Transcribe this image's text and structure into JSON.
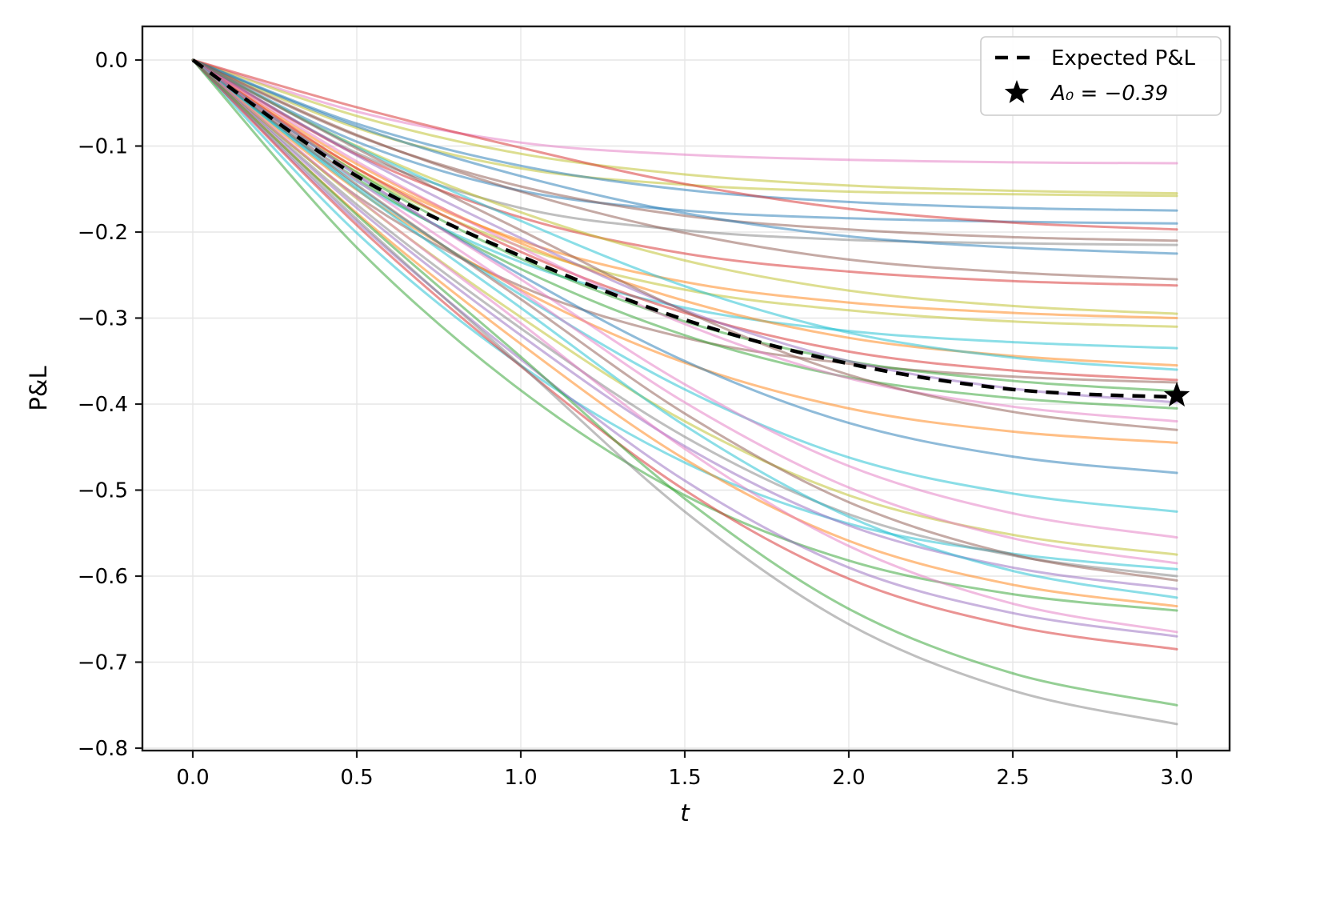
{
  "chart_data": {
    "type": "line",
    "title": "",
    "xlabel": "t",
    "ylabel": "P&L",
    "xlim": [
      -0.15,
      3.15
    ],
    "ylim": [
      -0.8,
      0.0
    ],
    "grid": true,
    "x": [
      0,
      0.5,
      1.0,
      1.5,
      2.0,
      2.5,
      3.0
    ],
    "xticks": [
      0,
      0.5,
      1.0,
      1.5,
      2.0,
      2.5,
      3.0
    ],
    "xtick_labels": [
      "0.0",
      "0.5",
      "1.0",
      "1.5",
      "2.0",
      "2.5",
      "3.0"
    ],
    "yticks": [
      0,
      -0.1,
      -0.2,
      -0.3,
      -0.4,
      -0.5,
      -0.6,
      -0.7,
      -0.8
    ],
    "ytick_labels": [
      "0.0",
      "−0.1",
      "−0.2",
      "−0.3",
      "−0.4",
      "−0.5",
      "−0.6",
      "−0.7",
      "−0.8"
    ],
    "legend": {
      "position": "upper right",
      "items": [
        {
          "marker": "dashed-line",
          "label": "Expected P&L"
        },
        {
          "marker": "star",
          "label": "A₀ = −0.39"
        }
      ]
    },
    "expected": {
      "label": "Expected P&L",
      "color": "#000000",
      "dashed": true,
      "y": [
        0,
        -0.135,
        -0.228,
        -0.302,
        -0.353,
        -0.383,
        -0.392
      ]
    },
    "terminal_marker": {
      "x": 3.0,
      "y": -0.39,
      "symbol": "star",
      "color": "#000000",
      "value_label": "A₀ = −0.39"
    },
    "series": [
      {
        "color": "#e377c2",
        "y": [
          0,
          -0.06,
          -0.096,
          -0.11,
          -0.116,
          -0.119,
          -0.12
        ]
      },
      {
        "color": "#bcbd22",
        "y": [
          0,
          -0.065,
          -0.109,
          -0.133,
          -0.146,
          -0.152,
          -0.155
        ]
      },
      {
        "color": "#bcbd22",
        "y": [
          0,
          -0.079,
          -0.126,
          -0.145,
          -0.153,
          -0.156,
          -0.158
        ]
      },
      {
        "color": "#1f77b4",
        "y": [
          0,
          -0.074,
          -0.123,
          -0.151,
          -0.165,
          -0.172,
          -0.175
        ]
      },
      {
        "color": "#1f77b4",
        "y": [
          0,
          -0.095,
          -0.152,
          -0.175,
          -0.184,
          -0.188,
          -0.19
        ]
      },
      {
        "color": "#d62728",
        "y": [
          0,
          -0.055,
          -0.102,
          -0.144,
          -0.173,
          -0.189,
          -0.197
        ]
      },
      {
        "color": "#8c564b",
        "y": [
          0,
          -0.088,
          -0.147,
          -0.181,
          -0.197,
          -0.206,
          -0.21
        ]
      },
      {
        "color": "#7f7f7f",
        "y": [
          0,
          -0.108,
          -0.172,
          -0.198,
          -0.209,
          -0.213,
          -0.215
        ]
      },
      {
        "color": "#1f77b4",
        "y": [
          0,
          -0.077,
          -0.135,
          -0.178,
          -0.205,
          -0.218,
          -0.225
        ]
      },
      {
        "color": "#8c564b",
        "y": [
          0,
          -0.087,
          -0.153,
          -0.201,
          -0.232,
          -0.247,
          -0.255
        ]
      },
      {
        "color": "#d62728",
        "y": [
          0,
          -0.11,
          -0.183,
          -0.225,
          -0.246,
          -0.257,
          -0.262
        ]
      },
      {
        "color": "#bcbd22",
        "y": [
          0,
          -0.1,
          -0.177,
          -0.233,
          -0.268,
          -0.286,
          -0.295
        ]
      },
      {
        "color": "#ff7f0e",
        "y": [
          0,
          -0.126,
          -0.21,
          -0.258,
          -0.282,
          -0.294,
          -0.3
        ]
      },
      {
        "color": "#bcbd22",
        "y": [
          0,
          -0.13,
          -0.217,
          -0.267,
          -0.291,
          -0.304,
          -0.31
        ]
      },
      {
        "color": "#17becf",
        "y": [
          0,
          -0.141,
          -0.235,
          -0.288,
          -0.315,
          -0.328,
          -0.335
        ]
      },
      {
        "color": "#ff7f0e",
        "y": [
          0,
          -0.121,
          -0.213,
          -0.28,
          -0.323,
          -0.344,
          -0.355
        ]
      },
      {
        "color": "#17becf",
        "y": [
          0,
          -0.101,
          -0.187,
          -0.263,
          -0.317,
          -0.346,
          -0.36
        ]
      },
      {
        "color": "#d62728",
        "y": [
          0,
          -0.126,
          -0.223,
          -0.294,
          -0.339,
          -0.361,
          -0.372
        ]
      },
      {
        "color": "#8c564b",
        "y": [
          0,
          -0.158,
          -0.263,
          -0.323,
          -0.353,
          -0.368,
          -0.375
        ]
      },
      {
        "color": "#2ca02c",
        "y": [
          0,
          -0.131,
          -0.231,
          -0.304,
          -0.35,
          -0.373,
          -0.385
        ]
      },
      {
        "color": "#9467bd",
        "y": [
          0,
          -0.111,
          -0.207,
          -0.291,
          -0.35,
          -0.382,
          -0.398
        ]
      },
      {
        "color": "#2ca02c",
        "y": [
          0,
          -0.138,
          -0.243,
          -0.32,
          -0.369,
          -0.393,
          -0.405
        ]
      },
      {
        "color": "#e377c2",
        "y": [
          0,
          -0.118,
          -0.218,
          -0.307,
          -0.37,
          -0.403,
          -0.42
        ]
      },
      {
        "color": "#8c564b",
        "y": [
          0,
          -0.103,
          -0.198,
          -0.292,
          -0.366,
          -0.409,
          -0.43
        ]
      },
      {
        "color": "#ff7f0e",
        "y": [
          0,
          -0.151,
          -0.267,
          -0.352,
          -0.405,
          -0.432,
          -0.445
        ]
      },
      {
        "color": "#1f77b4",
        "y": [
          0,
          -0.134,
          -0.25,
          -0.35,
          -0.422,
          -0.461,
          -0.48
        ]
      },
      {
        "color": "#17becf",
        "y": [
          0,
          -0.147,
          -0.273,
          -0.383,
          -0.462,
          -0.504,
          -0.525
        ]
      },
      {
        "color": "#e377c2",
        "y": [
          0,
          -0.133,
          -0.255,
          -0.377,
          -0.472,
          -0.527,
          -0.555
        ]
      },
      {
        "color": "#bcbd22",
        "y": [
          0,
          -0.161,
          -0.299,
          -0.42,
          -0.506,
          -0.552,
          -0.575
        ]
      },
      {
        "color": "#e377c2",
        "y": [
          0,
          -0.14,
          -0.269,
          -0.398,
          -0.497,
          -0.556,
          -0.585
        ]
      },
      {
        "color": "#17becf",
        "y": [
          0,
          -0.201,
          -0.355,
          -0.468,
          -0.539,
          -0.574,
          -0.592
        ]
      },
      {
        "color": "#7f7f7f",
        "y": [
          0,
          -0.168,
          -0.312,
          -0.438,
          -0.528,
          -0.576,
          -0.6
        ]
      },
      {
        "color": "#8c564b",
        "y": [
          0,
          -0.145,
          -0.278,
          -0.411,
          -0.514,
          -0.575,
          -0.605
        ]
      },
      {
        "color": "#9467bd",
        "y": [
          0,
          -0.172,
          -0.32,
          -0.449,
          -0.541,
          -0.59,
          -0.615
        ]
      },
      {
        "color": "#17becf",
        "y": [
          0,
          -0.15,
          -0.288,
          -0.425,
          -0.531,
          -0.594,
          -0.625
        ]
      },
      {
        "color": "#ff7f0e",
        "y": [
          0,
          -0.178,
          -0.33,
          -0.464,
          -0.559,
          -0.61,
          -0.635
        ]
      },
      {
        "color": "#2ca02c",
        "y": [
          0,
          -0.218,
          -0.384,
          -0.506,
          -0.582,
          -0.621,
          -0.64
        ]
      },
      {
        "color": "#e377c2",
        "y": [
          0,
          -0.16,
          -0.306,
          -0.452,
          -0.565,
          -0.632,
          -0.665
        ]
      },
      {
        "color": "#9467bd",
        "y": [
          0,
          -0.188,
          -0.348,
          -0.489,
          -0.59,
          -0.643,
          -0.67
        ]
      },
      {
        "color": "#d62728",
        "y": [
          0,
          -0.192,
          -0.356,
          -0.5,
          -0.603,
          -0.658,
          -0.685
        ]
      },
      {
        "color": "#2ca02c",
        "y": [
          0,
          -0.18,
          -0.345,
          -0.51,
          -0.638,
          -0.713,
          -0.75
        ]
      },
      {
        "color": "#7f7f7f",
        "y": [
          0,
          -0.185,
          -0.355,
          -0.525,
          -0.656,
          -0.733,
          -0.772
        ]
      }
    ],
    "style": {
      "series_opacity": 0.5,
      "series_width": 3,
      "expected_width": 4.5,
      "grid_color": "#e6e6e6",
      "spine_color": "#1a1a1a",
      "background": "#ffffff",
      "legend_border": "#cccccc"
    }
  }
}
